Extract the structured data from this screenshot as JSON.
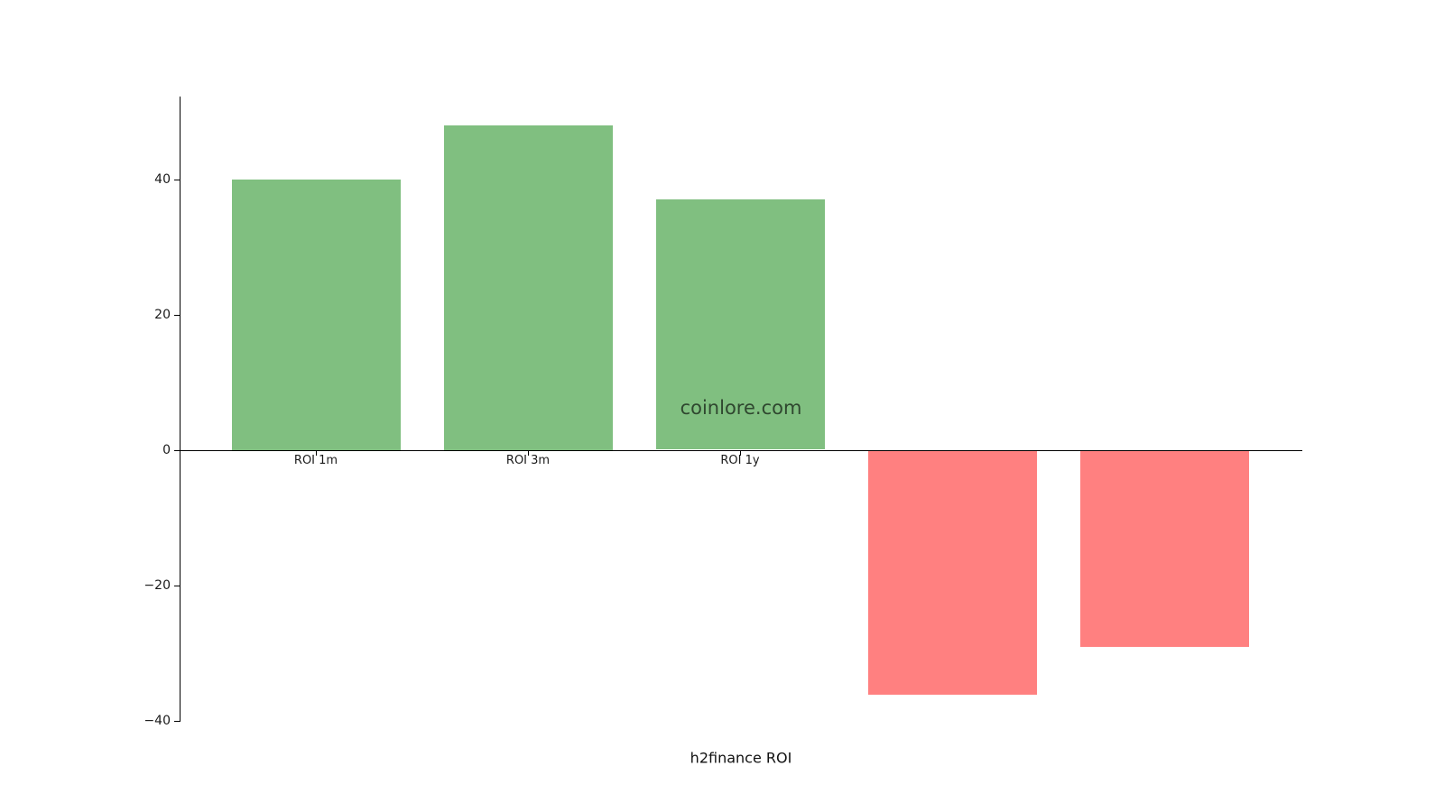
{
  "watermark": "coinlore.com",
  "chart_data": {
    "type": "bar",
    "title": "h2finance ROI",
    "xlabel": "h2finance ROI",
    "ylabel": "",
    "categories": [
      "ROI 1m",
      "ROI 3m",
      "ROI 1y",
      "",
      ""
    ],
    "values": [
      40,
      48,
      37,
      -36,
      -29
    ],
    "yticks": [
      40,
      20,
      0,
      -20,
      -40
    ],
    "ylim": [
      -40.2,
      52.2
    ],
    "grid": false,
    "legend_position": "none",
    "positive_color": "#80bf80",
    "negative_color": "#ff8080",
    "axis_color": "#000000",
    "tick_text_color": "#1a1a1a"
  }
}
